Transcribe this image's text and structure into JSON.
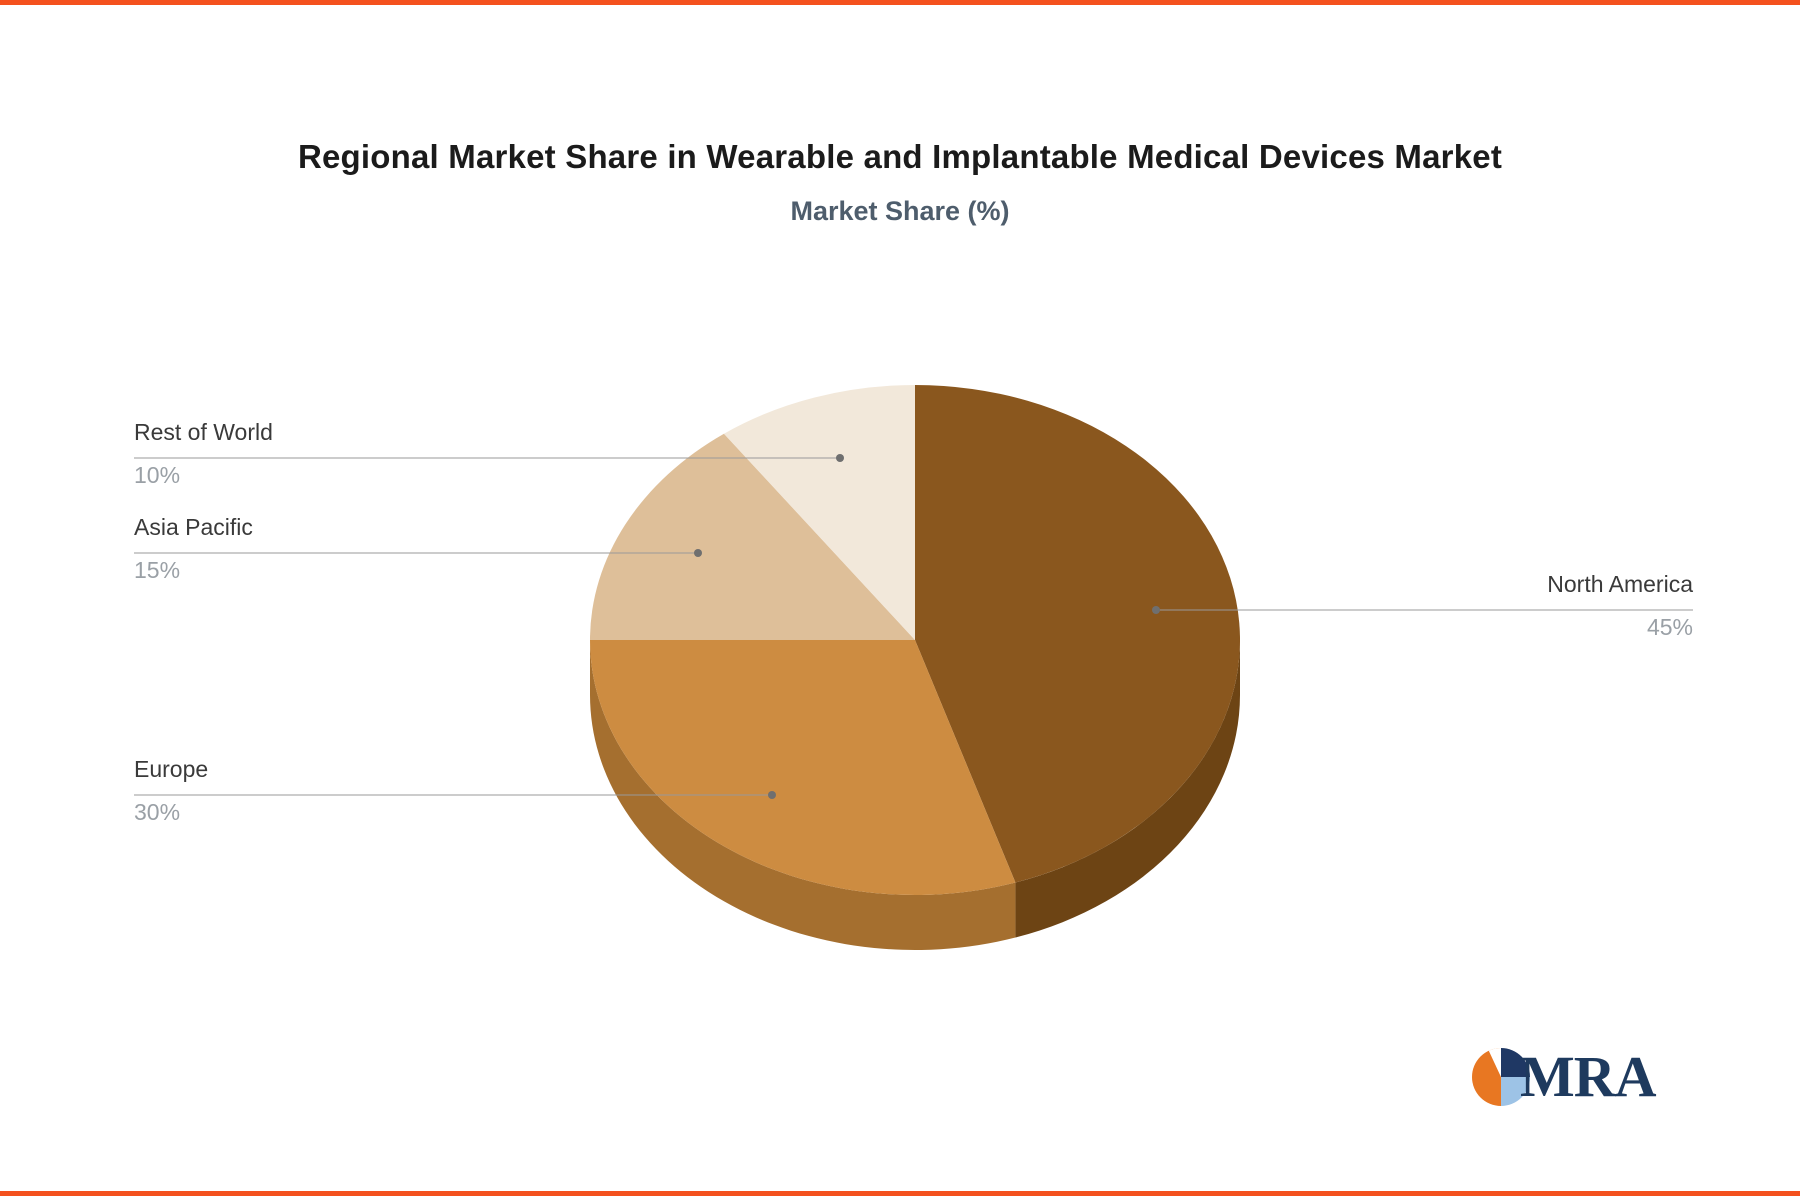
{
  "page": {
    "accent_color": "#f4511e",
    "background": "#ffffff"
  },
  "chart_data": {
    "type": "pie",
    "style": "3d-pie",
    "title": "Regional Market Share in Wearable and Implantable Medical Devices Market",
    "subtitle": "Market Share (%)",
    "direction": "clockwise",
    "start_angle_deg": 0,
    "total_percent": 100,
    "labels": "leader-lines",
    "label_color": "#3a3a3a",
    "pct_color": "#9aa0a6",
    "leader_line_color": "#999999",
    "segments": [
      {
        "label": "North America",
        "value": 45,
        "pct": "45%",
        "color": "#8a571e",
        "side_color": "#6d4414"
      },
      {
        "label": "Europe",
        "value": 30,
        "pct": "30%",
        "color": "#cd8c41",
        "side_color": "#a56f2f"
      },
      {
        "label": "Asia Pacific",
        "value": 15,
        "pct": "15%",
        "color": "#debf99",
        "side_color": "#b79c79"
      },
      {
        "label": "Rest of World",
        "value": 10,
        "pct": "10%",
        "color": "#f2e8da",
        "side_color": "#cfc2b0"
      }
    ]
  },
  "logo": {
    "text": "MRA",
    "text_color": "#1e3a5e",
    "colors": {
      "orange": "#e87722",
      "navy": "#1f3864",
      "light_blue": "#9dc3e6",
      "white": "#ffffff"
    }
  }
}
